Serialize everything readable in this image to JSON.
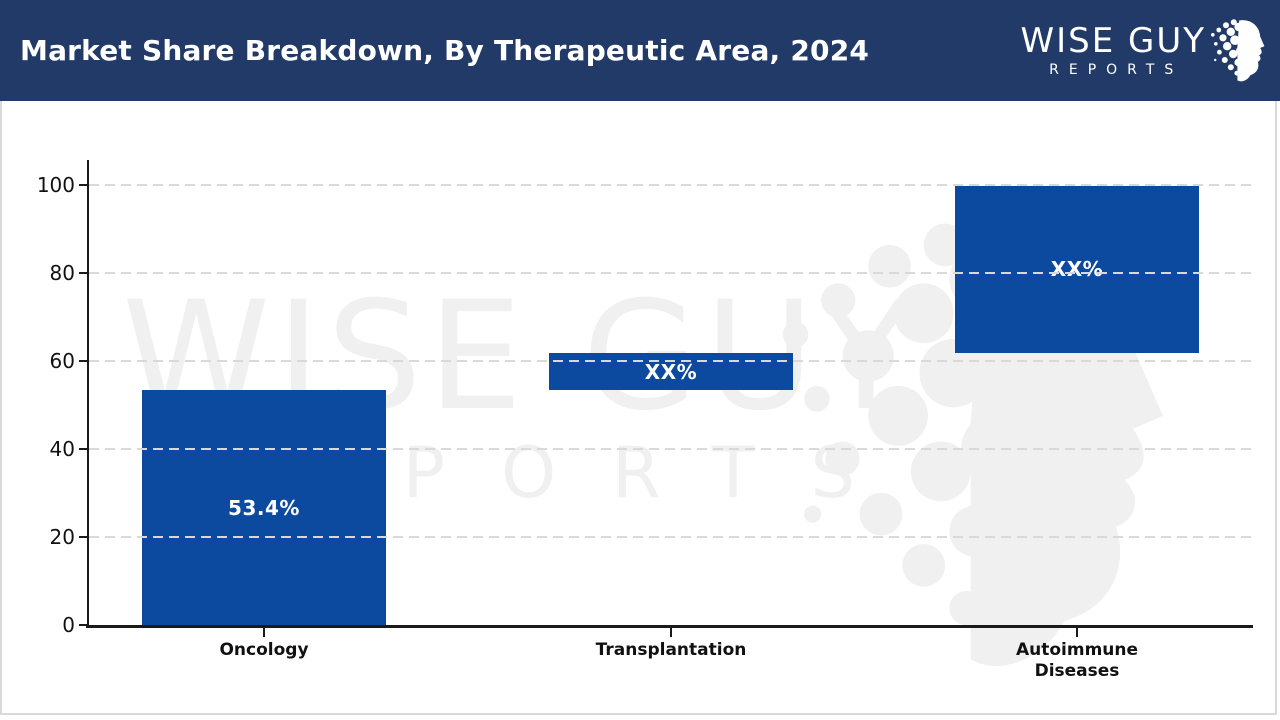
{
  "header": {
    "title": "Market Share Breakdown, By Therapeutic Area, 2024",
    "logo": {
      "line1": "WISE GUY",
      "line2": "REPORTS"
    }
  },
  "watermark": {
    "line1": "WISE GUY",
    "line2": "REPORTS"
  },
  "chart_data": {
    "type": "bar",
    "subtype": "waterfall",
    "title": "Market Share Breakdown, By Therapeutic Area, 2024",
    "categories": [
      "Oncology",
      "Transplantation",
      "Autoimmune\nDiseases"
    ],
    "segments": [
      {
        "category": "Oncology",
        "label": "53.4%",
        "start": 0,
        "end": 53.4
      },
      {
        "category": "Transplantation",
        "label": "XX%",
        "start": 53.4,
        "end": 61.8
      },
      {
        "category": "Autoimmune Diseases",
        "label": "XX%",
        "start": 61.8,
        "end": 99.8
      }
    ],
    "yticks": [
      0,
      20,
      40,
      60,
      80,
      100
    ],
    "ylim": [
      0,
      105.7
    ],
    "xlabel": "",
    "ylabel": "",
    "grid": "horizontal-dashed",
    "legend": "none",
    "bar_color": "#0c4aa0",
    "bar_label_color": "#ffffff"
  },
  "colors": {
    "header_bg": "#223a67",
    "bar": "#0c4aa0",
    "grid": "#d9d9d9",
    "axis": "#1a1a1a",
    "watermark": "#f0f0f0"
  }
}
